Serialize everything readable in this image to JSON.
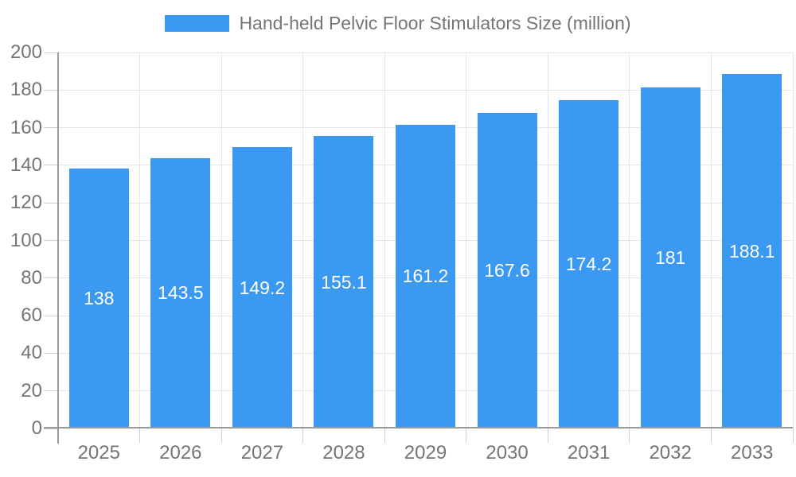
{
  "chart_data": {
    "type": "bar",
    "title": "Hand-held Pelvic Floor Stimulators Size (million)",
    "legend": {
      "label": "Hand-held Pelvic Floor Stimulators Size (million)",
      "position": "top-center"
    },
    "categories": [
      "2025",
      "2026",
      "2027",
      "2028",
      "2029",
      "2030",
      "2031",
      "2032",
      "2033"
    ],
    "series": [
      {
        "name": "Hand-held Pelvic Floor Stimulators Size (million)",
        "values": [
          138,
          143.5,
          149.2,
          155.1,
          161.2,
          167.6,
          174.2,
          181,
          188.1
        ]
      }
    ],
    "value_labels": [
      "138",
      "143.5",
      "149.2",
      "155.1",
      "161.2",
      "167.6",
      "174.2",
      "181",
      "188.1"
    ],
    "xlabel": "",
    "ylabel": "",
    "ylim": [
      0,
      200
    ],
    "ytick_step": 20,
    "grid": true,
    "colors": {
      "bar": "#3b99f1",
      "value_label": "#ffffff",
      "axis_text": "#757575",
      "axis_line": "#9a9a9a",
      "gridline": "#e6e6e6",
      "tick": "#cfcfcf",
      "background": "#ffffff"
    }
  }
}
